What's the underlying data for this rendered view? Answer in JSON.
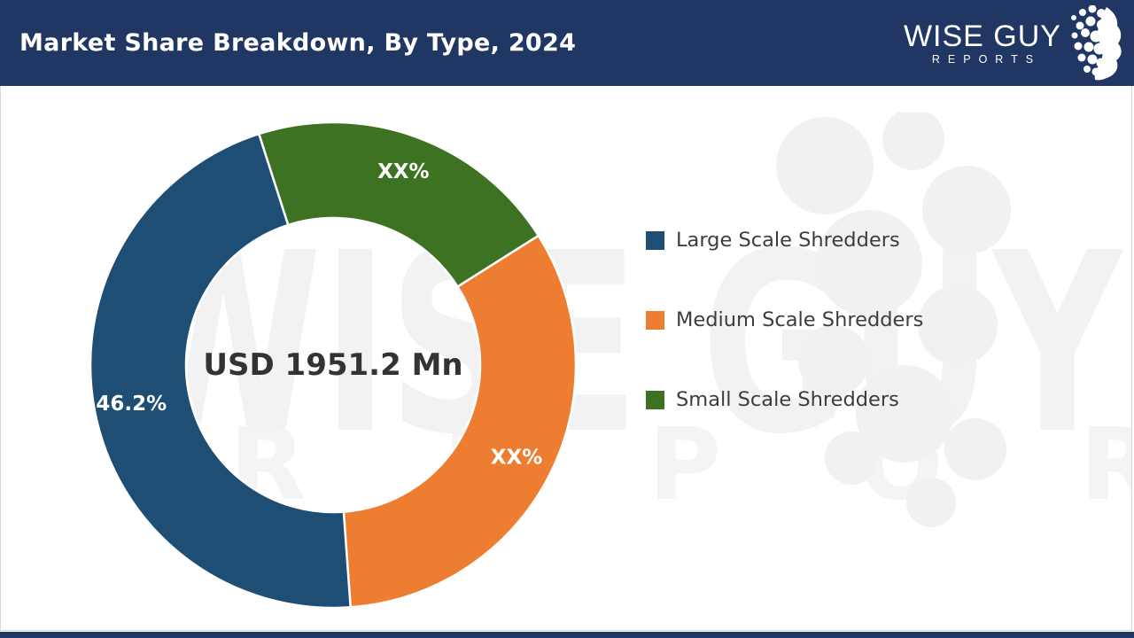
{
  "header": {
    "title": "Market Share Breakdown, By Type, 2024",
    "logo": {
      "line1": "WISE GUY",
      "line2": "REPORTS"
    }
  },
  "colors": {
    "header_bg": "#203764",
    "footer_bg": "#203764",
    "center_text": "#333333",
    "legend_text": "#3d3d3d",
    "slice_label_text": "#ffffff",
    "watermark": "#f2f2f2"
  },
  "watermark": {
    "line1": "WISE GUY",
    "line2": "R E P O R T S"
  },
  "chart_data": {
    "type": "pie",
    "donut": true,
    "title": "Market Share Breakdown, By Type, 2024",
    "center_label": "USD 1951.2 Mn",
    "start_angle_deg": -17.8,
    "legend_position": "right",
    "slices": [
      {
        "label": "Large Scale Shredders",
        "value": 46.2,
        "display": "46.2%",
        "color": "#1f4e74"
      },
      {
        "label": "Medium Scale Shredders",
        "value": 32.8,
        "display": "XX%",
        "color": "#ed7d31"
      },
      {
        "label": "Small Scale Shredders",
        "value": 21.0,
        "display": "XX%",
        "color": "#3c7221"
      }
    ]
  }
}
